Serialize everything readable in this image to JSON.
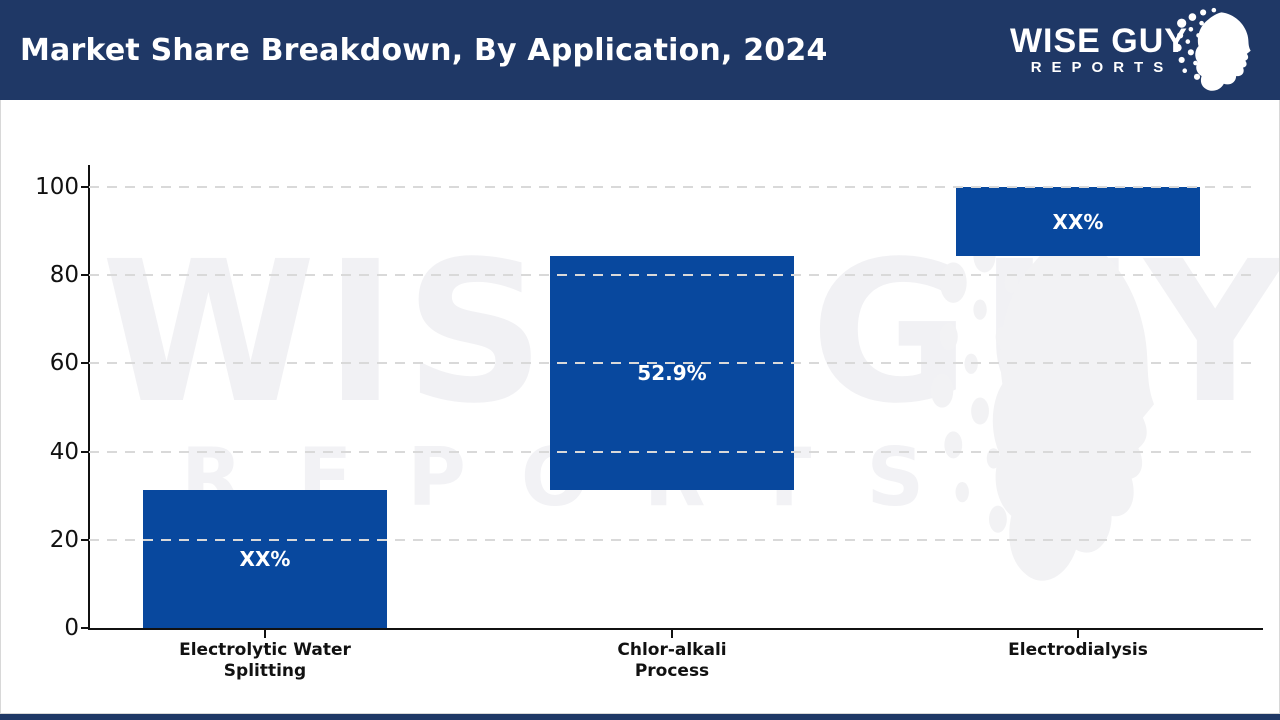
{
  "header": {
    "title": "Market Share Breakdown, By Application, 2024",
    "logo": {
      "primary": "WISE GUY",
      "secondary": "REPORTS"
    }
  },
  "watermark": {
    "primary": "WISE GUY",
    "secondary": "REPORTS"
  },
  "chart_data": {
    "type": "bar",
    "subtype": "waterfall-stacked-percent",
    "title": "Market Share Breakdown, By Application, 2024",
    "categories": [
      "Electrolytic Water Splitting",
      "Chlor-alkali Process",
      "Electrodialysis"
    ],
    "category_lines": [
      [
        "Electrolytic Water",
        "Splitting"
      ],
      [
        "Chlor-alkali",
        "Process"
      ],
      [
        "Electrodialysis"
      ]
    ],
    "segments": [
      {
        "category": "Electrolytic Water Splitting",
        "label": "XX%",
        "start": 0,
        "end": 31.4
      },
      {
        "category": "Chlor-alkali Process",
        "label": "52.9%",
        "start": 31.4,
        "end": 84.3
      },
      {
        "category": "Electrodialysis",
        "label": "XX%",
        "start": 84.3,
        "end": 100
      }
    ],
    "bar_labels_visible": [
      "XX%",
      "52.9%",
      "XX%"
    ],
    "yticks": [
      0,
      20,
      40,
      60,
      80,
      100
    ],
    "ylim": [
      0,
      105
    ],
    "xlabel": "",
    "ylabel": "",
    "grid": "horizontal-dashed",
    "legend": "none",
    "colors": {
      "bar": "#08489e",
      "grid": "#d9d9d9",
      "axis": "#111111",
      "bar_label": "#ffffff",
      "header_bg": "#1f3866",
      "category_label": "#111111"
    }
  }
}
